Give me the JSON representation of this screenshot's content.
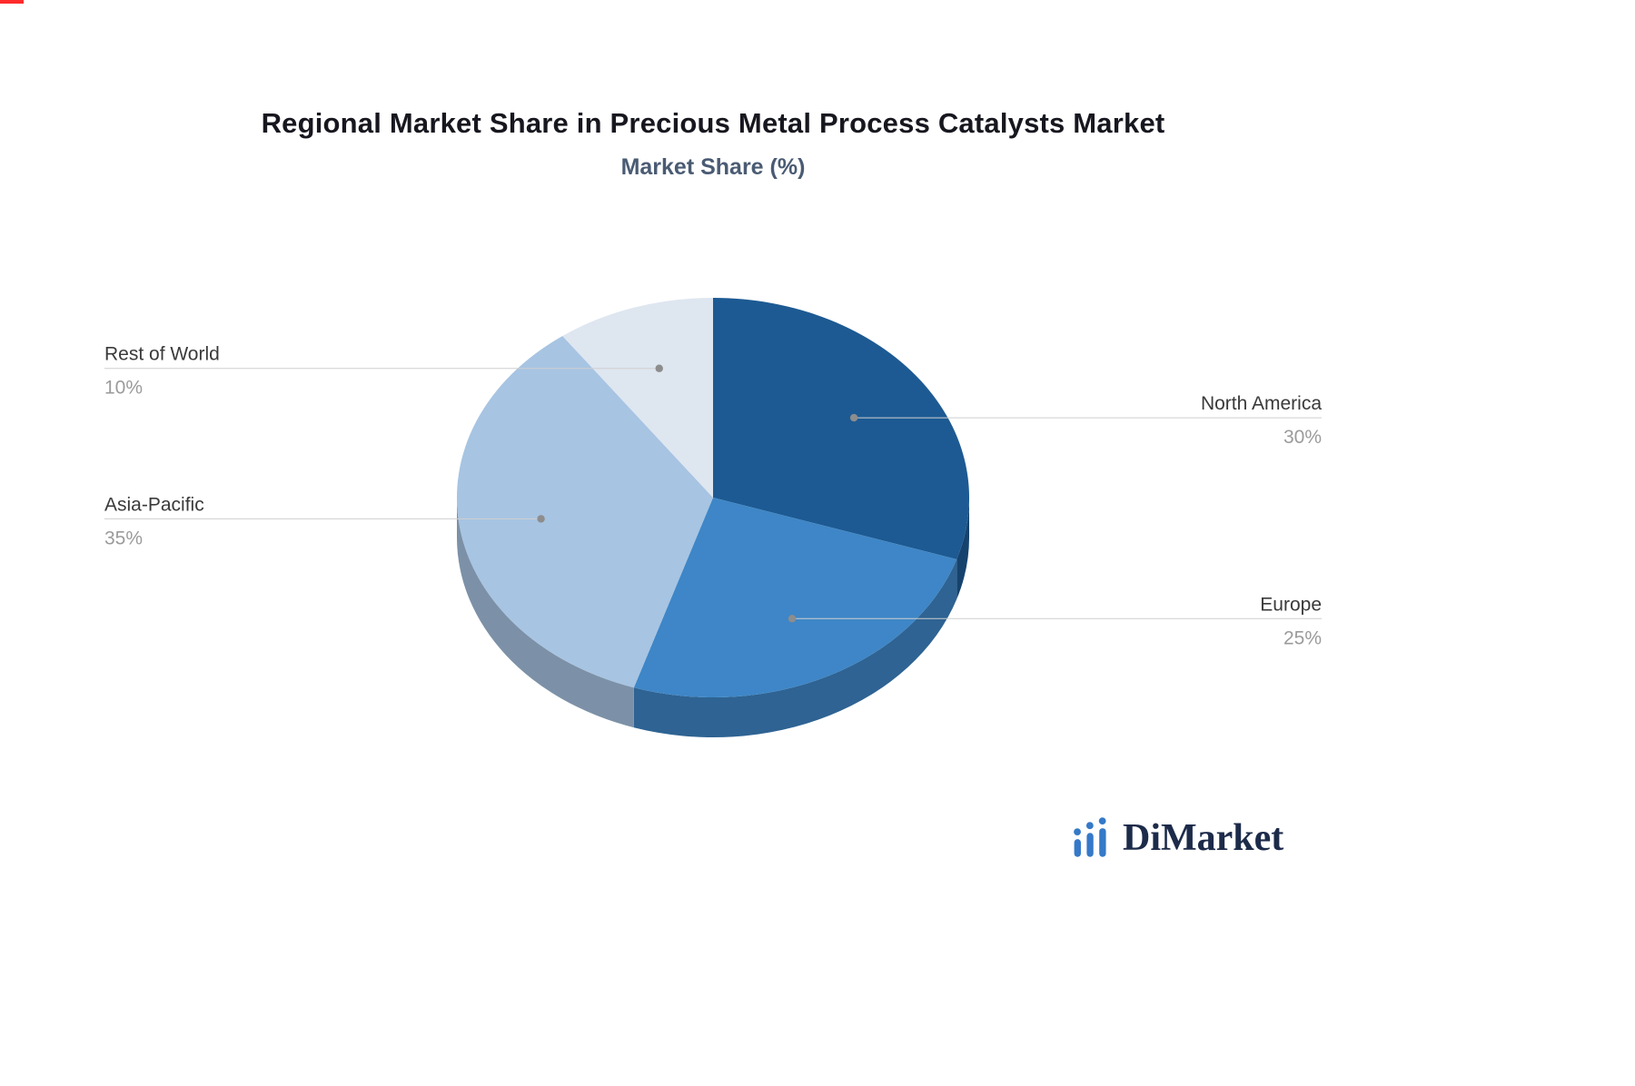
{
  "chart_data": {
    "type": "pie",
    "title": "Regional Market Share in Precious Metal Process Catalysts Market",
    "subtitle": "Market Share (%)",
    "unit": "%",
    "effect": "3d",
    "start_angle_deg": 0,
    "direction": "clockwise",
    "legend_position": "callout-labels",
    "slices": [
      {
        "label": "North America",
        "value": 30,
        "display": "30%",
        "color": "#1d5a93"
      },
      {
        "label": "Europe",
        "value": 25,
        "display": "25%",
        "color": "#3e86c7"
      },
      {
        "label": "Asia-Pacific",
        "value": 35,
        "display": "35%",
        "color": "#a7c4e2"
      },
      {
        "label": "Rest of World",
        "value": 10,
        "display": "10%",
        "color": "#dee6f0"
      }
    ]
  },
  "styles": {
    "label_color": "#3a3a3a",
    "value_color": "#9b9b9b",
    "leader_line_color": "#cfcfcf",
    "leader_dot_color": "#8d8d8d",
    "background": "#ffffff"
  },
  "branding": {
    "logo_text": "DiMarket",
    "logo_icon": "bar-chart-icon",
    "logo_text_color": "#1d2b4a",
    "logo_icon_color": "#3579c8"
  }
}
